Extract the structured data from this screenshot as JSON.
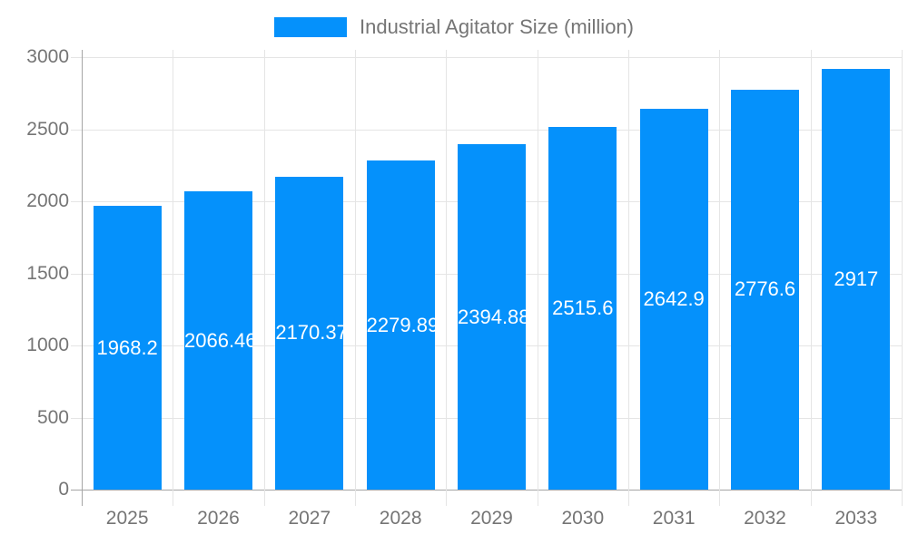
{
  "chart_data": {
    "type": "bar",
    "title": "Industrial Agitator Size (million)",
    "legend_position": "top",
    "categories": [
      "2025",
      "2026",
      "2027",
      "2028",
      "2029",
      "2030",
      "2031",
      "2032",
      "2033"
    ],
    "values": [
      1968.2,
      2066.46,
      2170.37,
      2279.89,
      2394.88,
      2515.6,
      2642.9,
      2776.6,
      2917
    ],
    "value_labels": [
      "1968.2",
      "2066.46",
      "2170.37",
      "2279.89",
      "2394.88",
      "2515.6",
      "2642.9",
      "2776.6",
      "2917"
    ],
    "xlabel": "",
    "ylabel": "",
    "ylim": [
      0,
      3000
    ],
    "yticks": [
      0,
      500,
      1000,
      1500,
      2000,
      2500,
      3000
    ],
    "ytick_labels": [
      "0",
      "500",
      "1000",
      "1500",
      "2000",
      "2500",
      "3000"
    ],
    "grid": true,
    "colors": {
      "bar": "#0591fb",
      "axis": "#a5a5a5",
      "gridline": "#e5e5e5",
      "tick_text": "#757575",
      "bar_label_text": "#ffffff",
      "legend_text": "#757575"
    }
  }
}
